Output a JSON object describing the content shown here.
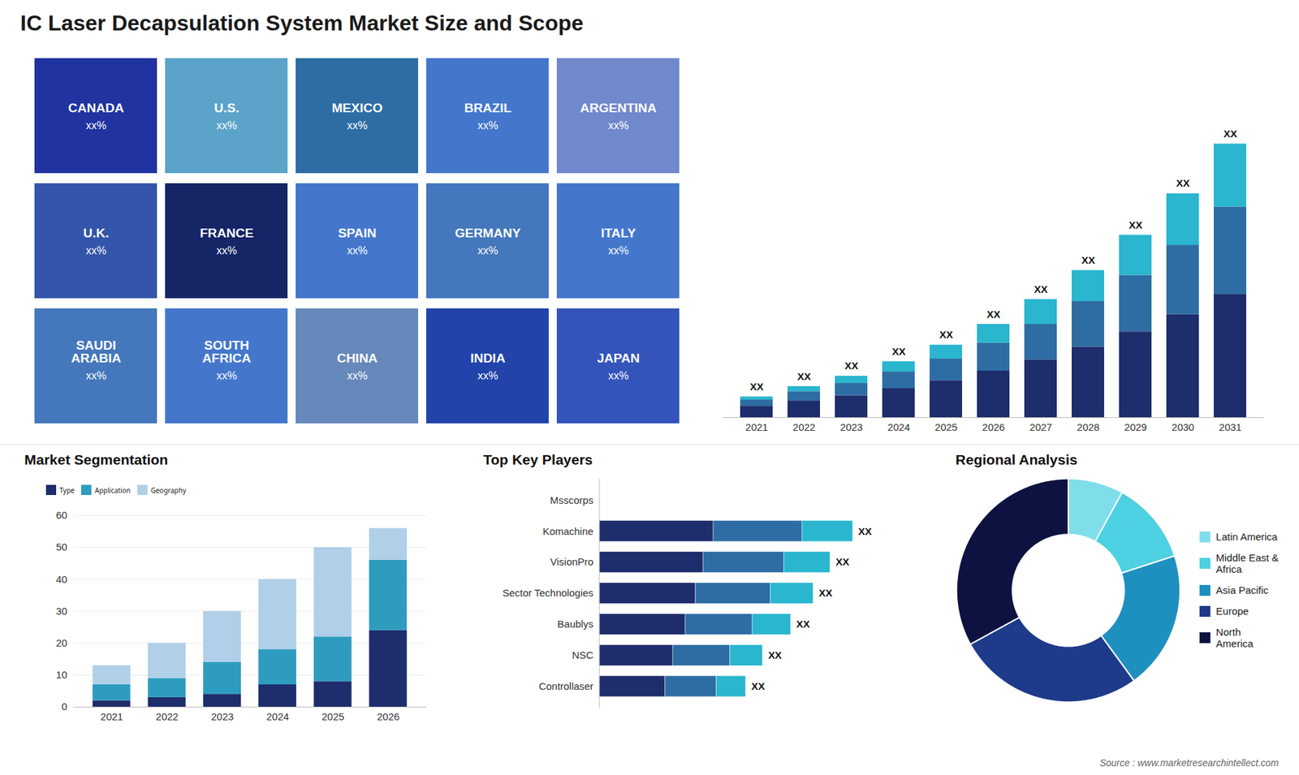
{
  "title": "IC Laser Decapsulation System Market Size and Scope",
  "caption": "Source : www.marketresearchintellect.com",
  "chart_data": [
    {
      "type": "map",
      "categories": [
        "CANADA",
        "U.S.",
        "MEXICO",
        "BRAZIL",
        "ARGENTINA",
        "U.K.",
        "FRANCE",
        "SPAIN",
        "GERMANY",
        "ITALY",
        "SAUDI\nARABIA",
        "SOUTH\nAFRICA",
        "CHINA",
        "INDIA",
        "JAPAN"
      ],
      "colors": [
        "#2033a0",
        "#5ba3c9",
        "#2e6da4",
        "#4477cc",
        "#7088cc",
        "#3355aa",
        "#152566",
        "#4477cc",
        "#4477bb",
        "#4477cc",
        "#4477bb",
        "#4477cc",
        "#6688bb",
        "#2244aa",
        "#3355bb"
      ],
      "value_labels": [
        "xx%",
        "xx%",
        "xx%",
        "xx%",
        "xx%",
        "xx%",
        "xx%",
        "xx%",
        "xx%",
        "xx%",
        "xx%",
        "xx%",
        "xx%",
        "xx%",
        "xx%"
      ]
    },
    {
      "type": "bar",
      "stacked": true,
      "categories": [
        "2021",
        "2022",
        "2023",
        "2024",
        "2025",
        "2026",
        "2027",
        "2028",
        "2029",
        "2030",
        "2031"
      ],
      "series": [
        {
          "color": "#1e2d6b",
          "values": [
            0.55,
            0.81,
            1.06,
            1.404,
            1.785,
            2.25,
            2.793,
            3.408,
            4.136,
            4.968,
            5.94
          ]
        },
        {
          "color": "#2e6da4",
          "values": [
            0.3,
            0.45,
            0.6,
            0.81,
            1.05,
            1.35,
            1.71,
            2.201,
            2.728,
            3.348,
            4.224
          ]
        },
        {
          "color": "#29b6ce",
          "values": [
            0.15,
            0.24,
            0.34,
            0.486,
            0.665,
            0.9,
            1.197,
            1.491,
            1.936,
            2.484,
            3.036
          ]
        }
      ],
      "ylim": [
        0,
        17.16
      ],
      "tick_labels": "x",
      "data_labels": true,
      "value_labels": [
        "XX",
        "XX",
        "XX",
        "XX",
        "XX",
        "XX",
        "XX",
        "XX",
        "XX",
        "XX",
        "XX"
      ]
    },
    {
      "type": "bar",
      "title": "Market Segmentation",
      "stacked": true,
      "categories": [
        "2021",
        "2022",
        "2023",
        "2024",
        "2025",
        "2026"
      ],
      "series": [
        {
          "name": "Type",
          "color": "#1e2d6b",
          "values": [
            2,
            3,
            4,
            7,
            8,
            24
          ]
        },
        {
          "name": "Application",
          "color": "#2e9cbf",
          "values": [
            5,
            6,
            10,
            11,
            14,
            22
          ]
        },
        {
          "name": "Geography",
          "color": "#b0cfe8",
          "values": [
            6,
            11,
            16,
            22,
            28,
            10
          ]
        }
      ],
      "ylim": [
        0,
        60
      ],
      "yticks": [
        0,
        10,
        20,
        30,
        40,
        50,
        60
      ],
      "grid": true,
      "legend": "upper left"
    },
    {
      "type": "bar",
      "title": "Top Key Players",
      "orientation": "horizontal",
      "stacked": true,
      "categories": [
        "Msscorps",
        "Komachine",
        "VisionPro",
        "Sector Technologies",
        "Baublys",
        "NSC",
        "Controllaser"
      ],
      "series": [
        {
          "color": "#1e2d6b",
          "values": [
            0,
            40.5,
            36.9,
            34.2,
            30.6,
            26.1,
            23.4
          ]
        },
        {
          "color": "#2e6da4",
          "values": [
            0,
            31.5,
            28.7,
            26.6,
            23.8,
            20.3,
            18.2
          ]
        },
        {
          "color": "#29b6ce",
          "values": [
            0,
            18,
            16.4,
            15.2,
            13.6,
            11.6,
            10.4
          ]
        }
      ],
      "xlim": [
        0,
        115
      ],
      "tick_labels": "y",
      "data_labels": true,
      "value_labels": [
        null,
        "XX",
        "XX",
        "XX",
        "XX",
        "XX",
        "XX"
      ]
    },
    {
      "type": "pie",
      "title": "Regional Analysis",
      "categories": [
        "Latin America",
        "Middle East &\nAfrica",
        "Asia Pacific",
        "Europe",
        "North America"
      ],
      "values": [
        8,
        12,
        20,
        27,
        33
      ],
      "colors": [
        "#80deea",
        "#4dd0e1",
        "#1e90c0",
        "#1e3a8a",
        "#0d1240"
      ],
      "legend": "right"
    }
  ]
}
